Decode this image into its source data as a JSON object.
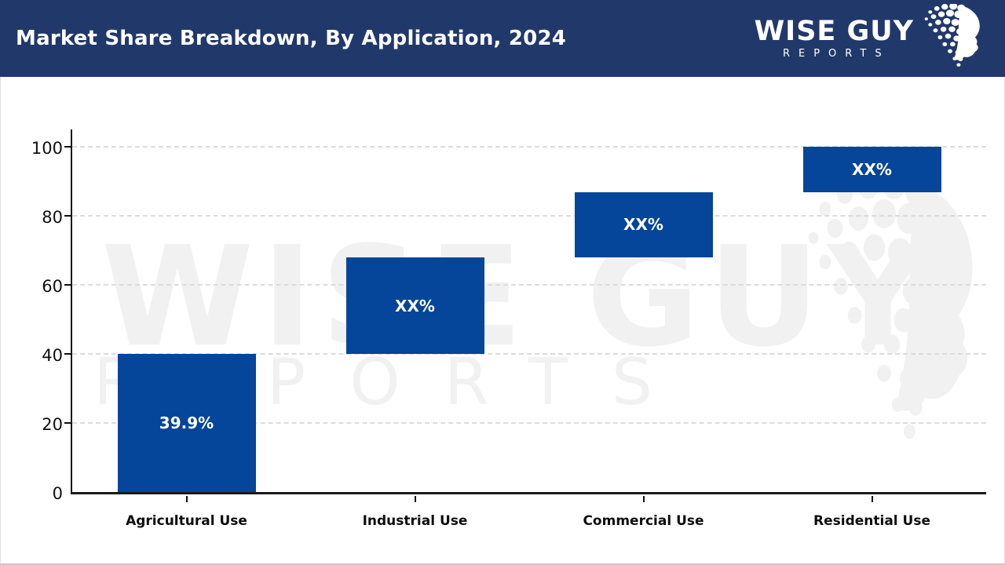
{
  "header": {
    "title": "Market Share Breakdown, By Application, 2024"
  },
  "logo": {
    "line1": "WISE GUY",
    "line2": "REPORTS",
    "icon": "dotted-head-icon"
  },
  "watermark": {
    "line1": "WISE GUY",
    "line2": "REPORTS",
    "icon": "dotted-head-icon"
  },
  "chart_data": {
    "type": "bar",
    "subtype": "waterfall",
    "title": "Market Share Breakdown, By Application, 2024",
    "categories": [
      "Agricultural Use",
      "Industrial Use",
      "Commercial Use",
      "Residential Use"
    ],
    "segments": [
      {
        "category": "Agricultural Use",
        "start": 0,
        "end": 39.9,
        "label": "39.9%"
      },
      {
        "category": "Industrial Use",
        "start": 39.9,
        "end": 68.0,
        "label": "XX%"
      },
      {
        "category": "Commercial Use",
        "start": 68.0,
        "end": 86.8,
        "label": "XX%"
      },
      {
        "category": "Residential Use",
        "start": 86.8,
        "end": 100,
        "label": "XX%"
      }
    ],
    "yticks": [
      0,
      20,
      40,
      60,
      80,
      100
    ],
    "ylim": [
      0,
      105
    ],
    "xlabel": "",
    "ylabel": "",
    "grid": "horizontal-dashed",
    "legend": "none",
    "bar_color": "#05459a",
    "bar_label_color": "#ffffff",
    "axis_color": "#0f0f0f",
    "gridline_color": "#dcdcdc",
    "header_bg_color": "#21386a",
    "watermark_color": "#f1f1f1"
  }
}
